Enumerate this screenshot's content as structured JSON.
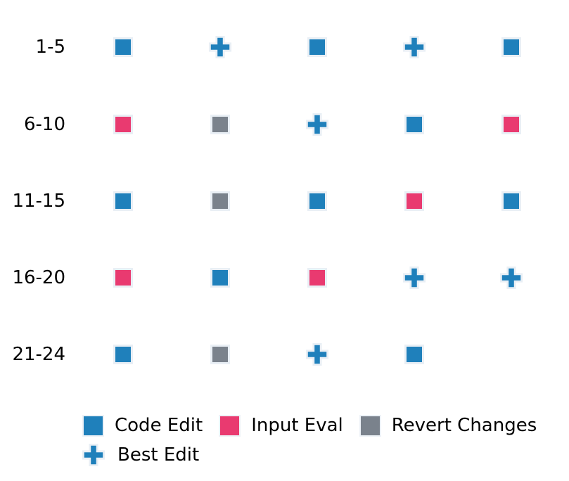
{
  "chart_data": {
    "type": "scatter",
    "title": "",
    "xlabel": "",
    "ylabel": "",
    "categories": [
      "1-5",
      "6-10",
      "11-15",
      "16-20",
      "21-24"
    ],
    "columns_per_row": [
      5,
      5,
      5,
      5,
      4
    ],
    "grid": [
      [
        "code_edit",
        "best_edit",
        "code_edit",
        "best_edit",
        "code_edit"
      ],
      [
        "input_eval",
        "revert_changes",
        "best_edit",
        "code_edit",
        "input_eval"
      ],
      [
        "code_edit",
        "revert_changes",
        "code_edit",
        "input_eval",
        "code_edit"
      ],
      [
        "input_eval",
        "code_edit",
        "input_eval",
        "best_edit",
        "best_edit"
      ],
      [
        "code_edit",
        "revert_changes",
        "best_edit",
        "code_edit",
        null
      ]
    ],
    "markers": {
      "code_edit": {
        "label": "Code Edit",
        "shape": "square",
        "color": "#1F80BB"
      },
      "input_eval": {
        "label": "Input Eval",
        "shape": "square",
        "color": "#E93A70"
      },
      "revert_changes": {
        "label": "Revert Changes",
        "shape": "square",
        "color": "#7A828C"
      },
      "best_edit": {
        "label": "Best Edit",
        "shape": "plus",
        "color": "#1F80BB"
      }
    },
    "legend": {
      "position": "lower center",
      "rows": [
        [
          "code_edit",
          "input_eval",
          "revert_changes"
        ],
        [
          "best_edit"
        ]
      ]
    },
    "layout_hints": {
      "grid_lines": false,
      "axis_frame": false,
      "background": "#FFFFFF",
      "marker_edge_color": "#E9EFF5",
      "text_color": "#000000"
    }
  }
}
